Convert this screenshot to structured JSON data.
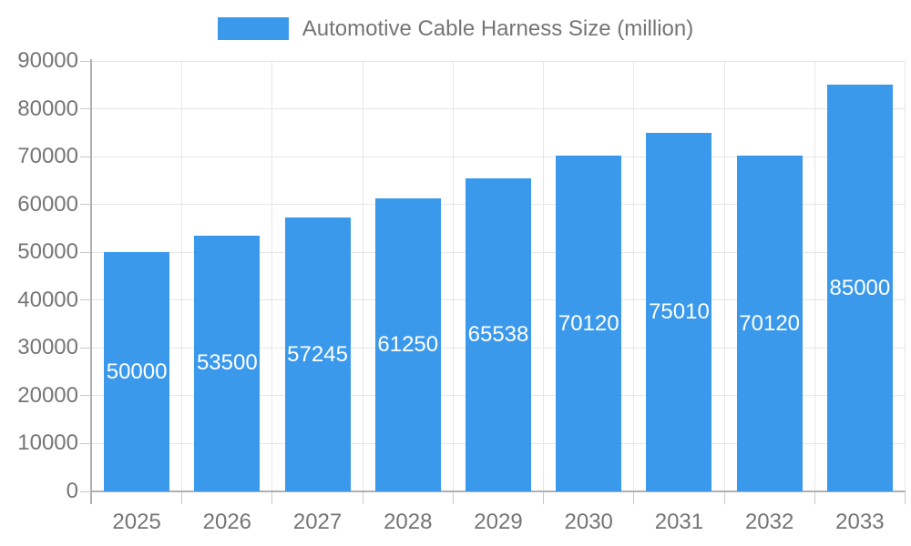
{
  "legend": {
    "label": "Automotive Cable Harness Size (million)"
  },
  "chart_data": {
    "type": "bar",
    "title": "Automotive Cable Harness Size (million)",
    "categories": [
      "2025",
      "2026",
      "2027",
      "2028",
      "2029",
      "2030",
      "2031",
      "2032",
      "2033"
    ],
    "series": [
      {
        "name": "Automotive Cable Harness Size (million)",
        "values": [
          50000,
          53500,
          57245,
          61250,
          65538,
          70120,
          75010,
          70120,
          85000
        ]
      }
    ],
    "bar_value_labels": [
      "50000",
      "53500",
      "57245",
      "61250",
      "65538",
      "70120",
      "75010",
      "70120",
      "85000"
    ],
    "xlabel": "",
    "ylabel": "",
    "ylim": [
      0,
      90000
    ],
    "ytick_step": 10000,
    "y_tick_labels": [
      "0",
      "10000",
      "20000",
      "30000",
      "40000",
      "50000",
      "60000",
      "70000",
      "80000",
      "90000"
    ],
    "grid": true,
    "legend_position": "top",
    "bar_labels_position": "inside-center",
    "colors": {
      "bar": "#3B99EC",
      "axis_text": "#757575",
      "bar_label_text": "#FFFFFF",
      "gridline": "#E6E6E6",
      "tick": "#C9C9C9",
      "axis_line": "#B0B0B0",
      "background": "#FFFFFF"
    }
  }
}
